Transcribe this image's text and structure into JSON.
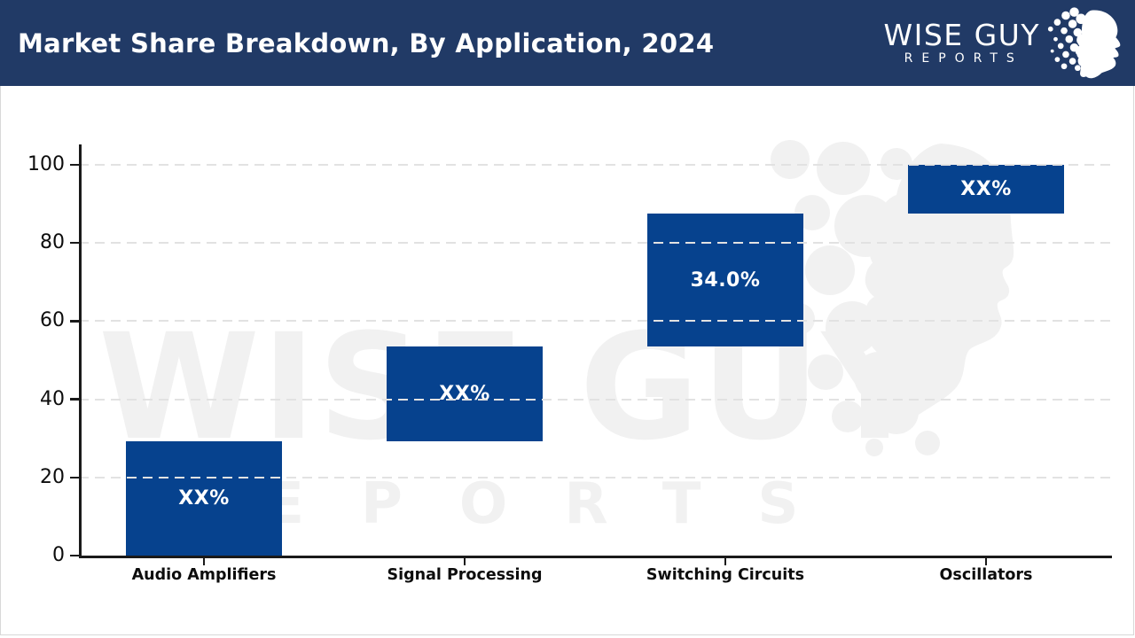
{
  "header": {
    "title": "Market Share Breakdown, By Application, 2024",
    "logo": {
      "wordmark": "WISE GUY",
      "subtext": "REPORTS"
    }
  },
  "watermark": {
    "wordmark": "WISE GUY",
    "subtext": "REPORTS"
  },
  "colors": {
    "header_bg": "#213a66",
    "bar": "#06428e",
    "gridline": "#e2e2e2",
    "axis": "#1a1a1a",
    "watermark": "#f1f1f1",
    "bar_label_text": "#ffffff"
  },
  "chart_data": {
    "type": "bar",
    "subtype": "waterfall",
    "title": "Market Share Breakdown, By Application, 2024",
    "categories": [
      "Audio Amplifiers",
      "Signal Processing",
      "Switching Circuits",
      "Oscillators"
    ],
    "values": [
      29.3,
      24.2,
      34.0,
      12.5
    ],
    "segments": [
      {
        "category": "Audio Amplifiers",
        "start": 0,
        "end": 29.3,
        "label": "XX%"
      },
      {
        "category": "Signal Processing",
        "start": 29.3,
        "end": 53.5,
        "label": "XX%"
      },
      {
        "category": "Switching Circuits",
        "start": 53.5,
        "end": 87.5,
        "label": "34.0%"
      },
      {
        "category": "Oscillators",
        "start": 87.5,
        "end": 100,
        "label": "XX%"
      }
    ],
    "yticks": [
      0,
      20,
      40,
      60,
      80,
      100
    ],
    "ylim": [
      0,
      105
    ],
    "xlabel": "",
    "ylabel": "",
    "grid": "horizontal-dashed",
    "legend": "none",
    "bar_color": "#06428e"
  }
}
